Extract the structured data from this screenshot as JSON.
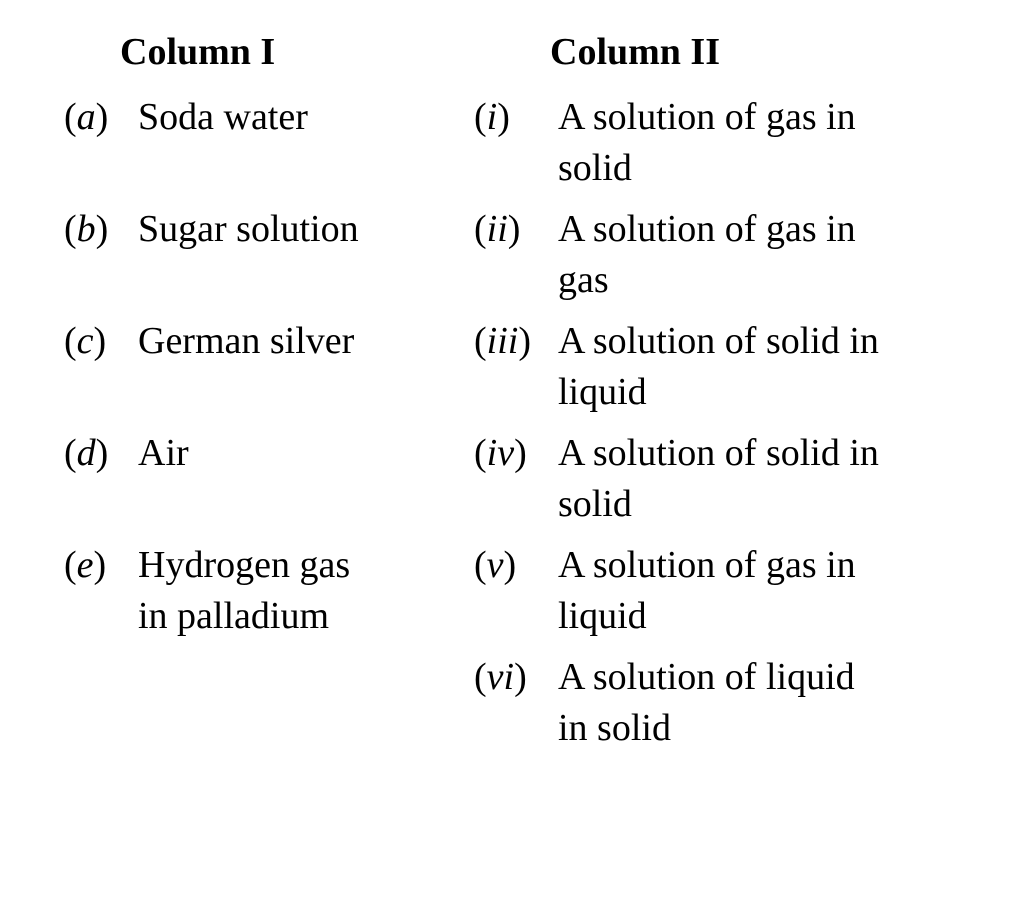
{
  "columns": {
    "left": {
      "header": "Column I",
      "items": [
        {
          "marker": "(a)",
          "text": "Soda water"
        },
        {
          "marker": "(b)",
          "text": "Sugar solution"
        },
        {
          "marker": "(c)",
          "text": "German silver"
        },
        {
          "marker": "(d)",
          "text": "Air"
        },
        {
          "marker": "(e)",
          "text_line1": "Hydrogen gas",
          "text_line2": "in palladium"
        }
      ]
    },
    "right": {
      "header": "Column II",
      "items": [
        {
          "marker": "(i)",
          "text_line1": "A solution of gas in",
          "text_line2": "solid"
        },
        {
          "marker": "(ii)",
          "text_line1": "A solution of gas in",
          "text_line2": "gas"
        },
        {
          "marker": "(iii)",
          "text_line1": "A solution of solid in",
          "text_line2": "liquid"
        },
        {
          "marker": "(iv)",
          "text_line1": "A solution of solid in",
          "text_line2": "solid"
        },
        {
          "marker": "(v)",
          "text_line1": "A solution of gas in",
          "text_line2": "liquid"
        },
        {
          "marker": "(vi)",
          "text_line1": "A solution of liquid",
          "text_line2": "in solid"
        }
      ]
    }
  },
  "style": {
    "font_family": "Times New Roman",
    "font_size_header": 38,
    "font_size_body": 38,
    "text_color": "#000000",
    "background_color": "#ffffff",
    "header_font_weight": "bold",
    "marker_style": "italic-letter-parentheses-left",
    "marker_style_right": "italic-roman-parentheses"
  }
}
